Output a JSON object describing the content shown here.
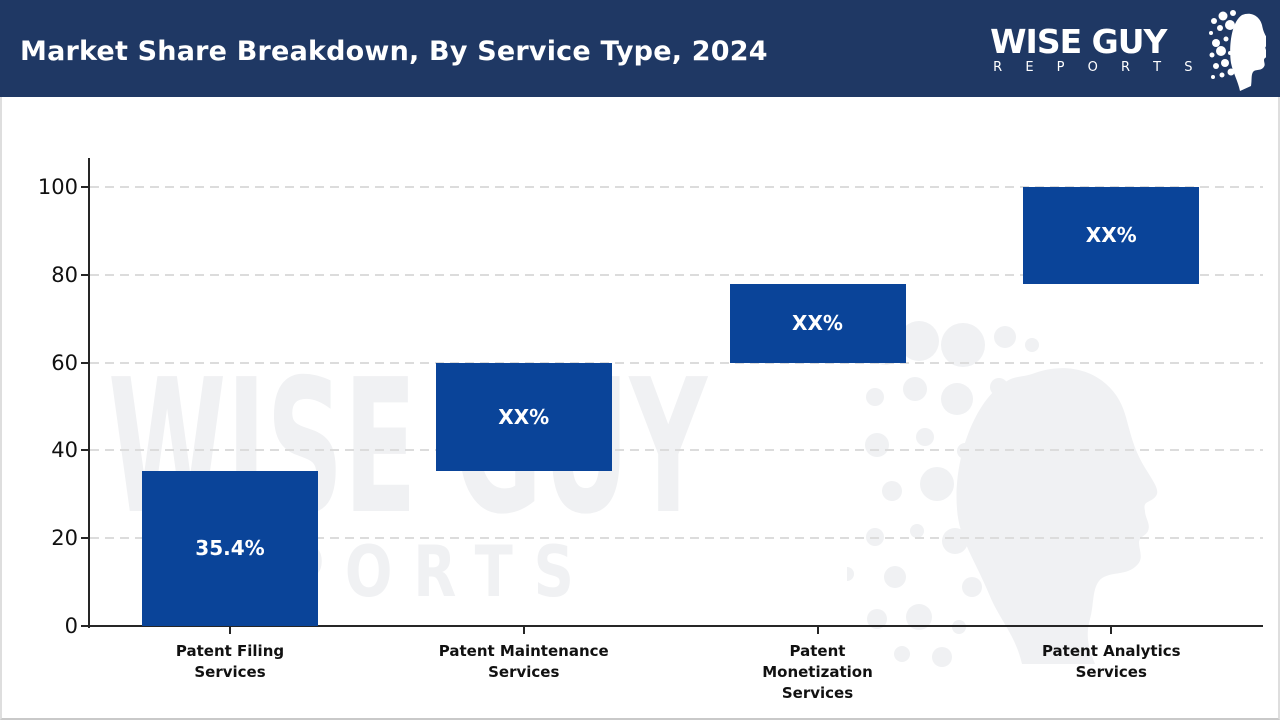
{
  "header": {
    "title": "Market Share Breakdown, By Service Type, 2024",
    "logo": {
      "line1": "WISE GUY",
      "line2": "R E P O R T S"
    }
  },
  "watermark": {
    "line1": "WISE GUY",
    "line2": "REPORTS"
  },
  "colors": {
    "header_bg": "#1f3864",
    "bar": "#0a4499",
    "bar_label_text": "#ffffff",
    "axis": "#262626",
    "tick_text": "#111111",
    "gridline": "#dcdcdc",
    "watermark": "#f0f1f3",
    "background": "#ffffff",
    "title_text": "#ffffff"
  },
  "chart_data": {
    "type": "bar",
    "subtype": "waterfall",
    "title": "Market Share Breakdown, By Service Type, 2024",
    "categories": [
      "Patent Filing Services",
      "Patent Maintenance Services",
      "Patent Monetization Services",
      "Patent Analytics Services"
    ],
    "category_lines": [
      [
        "Patent Filing",
        "Services"
      ],
      [
        "Patent Maintenance",
        "Services"
      ],
      [
        "Patent",
        "Monetization",
        "Services"
      ],
      [
        "Patent Analytics",
        "Services"
      ]
    ],
    "segments": [
      {
        "start": 0,
        "end": 35.4,
        "label": "35.4%"
      },
      {
        "start": 35.4,
        "end": 60,
        "label": "XX%"
      },
      {
        "start": 60,
        "end": 78,
        "label": "XX%"
      },
      {
        "start": 78,
        "end": 100,
        "label": "XX%"
      }
    ],
    "yticks": [
      0,
      20,
      40,
      60,
      80,
      100
    ],
    "ylim": [
      0,
      100
    ],
    "xlabel": "",
    "ylabel": "",
    "grid": "dashed-horizontal",
    "legend": "none",
    "bar_color": "#0a4499"
  }
}
